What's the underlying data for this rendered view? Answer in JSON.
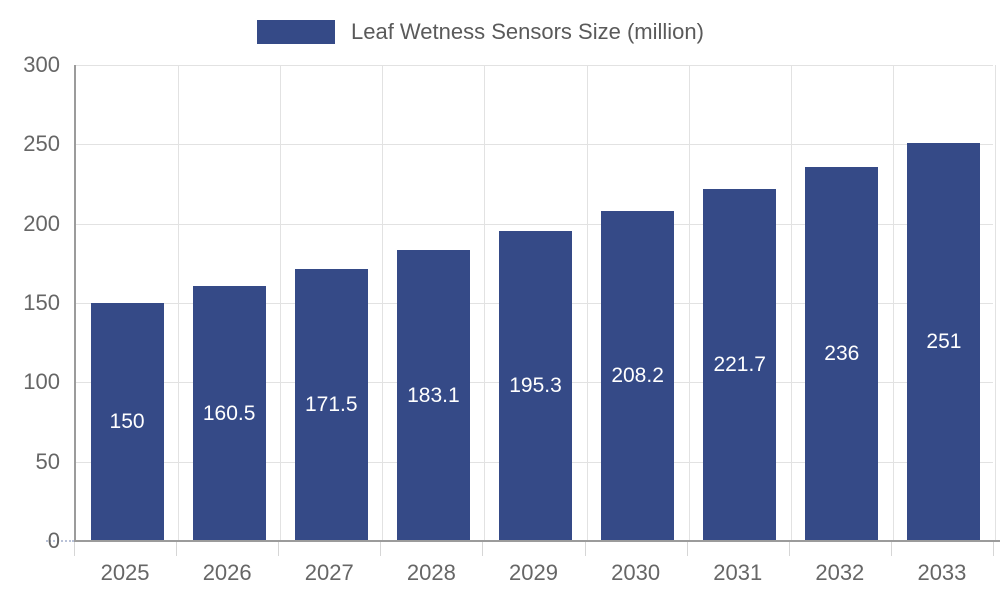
{
  "legend": {
    "label": "Leaf Wetness Sensors Size (million)"
  },
  "colors": {
    "bar": "#354a87",
    "grid": "#e2e2e2",
    "axis": "#9b9b9b",
    "tick_text": "#666666",
    "legend_text": "#5a5a5a",
    "value_label": "#ffffff"
  },
  "chart_data": {
    "type": "bar",
    "title": "",
    "legend": "Leaf Wetness Sensors Size (million)",
    "legend_position": "top",
    "categories": [
      "2025",
      "2026",
      "2027",
      "2028",
      "2029",
      "2030",
      "2031",
      "2032",
      "2033"
    ],
    "values": [
      150,
      160.5,
      171.5,
      183.1,
      195.3,
      208.2,
      221.7,
      236,
      251
    ],
    "value_labels": [
      "150",
      "160.5",
      "171.5",
      "183.1",
      "195.3",
      "208.2",
      "221.7",
      "236",
      "251"
    ],
    "xlabel": "",
    "ylabel": "",
    "ylim": [
      0,
      300
    ],
    "yticks": [
      0,
      50,
      100,
      150,
      200,
      250,
      300
    ],
    "ytick_labels": [
      "0",
      "50",
      "100",
      "150",
      "200",
      "250",
      "300"
    ],
    "grid": true
  }
}
